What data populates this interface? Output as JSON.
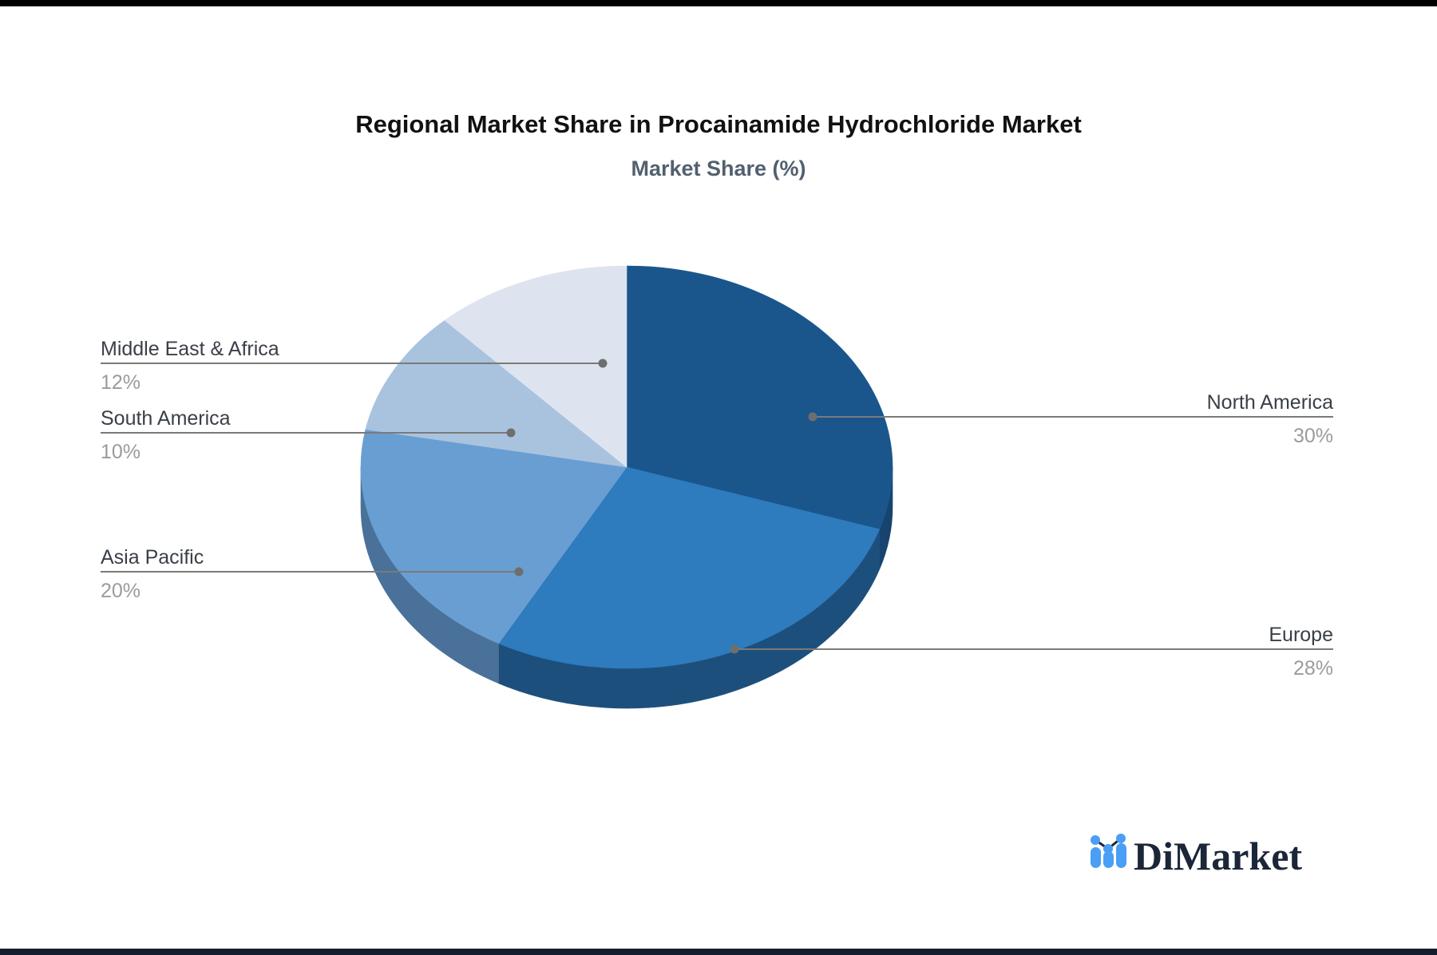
{
  "page": {
    "background": "#ffffff",
    "top_edge_bar_color": "#000000",
    "bottom_edge_bar_color": "#161c2c"
  },
  "header": {
    "title": "Regional Market Share in Procainamide Hydrochloride Market",
    "subtitle": "Market Share (%)"
  },
  "chart_data": {
    "type": "pie",
    "style_3d": true,
    "title": "Regional Market Share in Procainamide Hydrochloride Market",
    "subtitle": "Market Share (%)",
    "unit": "%",
    "legend_position": "none",
    "labels_layout": "callout-leader-lines",
    "start_angle": "12-oclock-clockwise",
    "slices": [
      {
        "label": "North America",
        "value": 30,
        "display": "30%",
        "color": "#1a568c",
        "rim_color": "#17446f",
        "side": "right"
      },
      {
        "label": "Europe",
        "value": 28,
        "display": "28%",
        "color": "#2e7bbe",
        "rim_color": "#1d4f7d",
        "side": "right"
      },
      {
        "label": "Asia Pacific",
        "value": 20,
        "display": "20%",
        "color": "#699ed2",
        "rim_color": "#4a7199",
        "side": "left"
      },
      {
        "label": "South America",
        "value": 10,
        "display": "10%",
        "color": "#a9c3df",
        "rim_color": "#7e9cbd",
        "side": "left"
      },
      {
        "label": "Middle East & Africa",
        "value": 12,
        "display": "12%",
        "color": "#dee4ef",
        "rim_color": "#b6c0d2",
        "side": "left"
      }
    ]
  },
  "logo": {
    "text": "DiMarket",
    "icon": "bar-line-chart-icon",
    "text_color": "#1b2638",
    "accent_color": "#4b9ef5"
  },
  "style": {
    "title_color": "#111111",
    "subtitle_color": "#52606f",
    "label_name_color": "#3a3f47",
    "label_value_color": "#9b9b9b",
    "leader_line_color": "#7a7a7a",
    "leader_dot_color": "#6e6e6e"
  }
}
